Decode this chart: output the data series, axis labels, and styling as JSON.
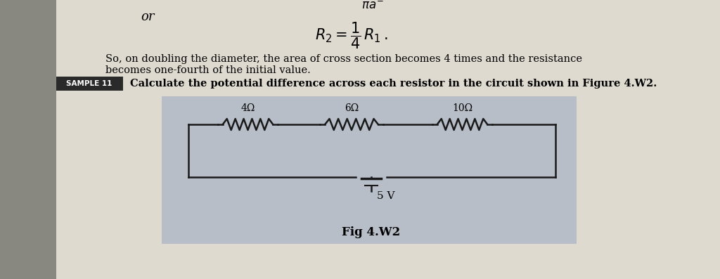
{
  "bg_color": "#c0bdb0",
  "page_bg": "#dedad0",
  "circuit_bg": "#b8bec8",
  "text_or": "or",
  "para_text1": "So, on doubling the diameter, the area of cross section becomes 4 times and the resistance",
  "para_text2": "becomes one-fourth of the initial value.",
  "example_label": "SAMPLE 11",
  "example_text": "Calculate the potential difference across each resistor in the circuit shown in Figure 4.W2.",
  "fig_caption": "Fig 4.W2",
  "resistors": [
    "4Ω",
    "6Ω",
    "10Ω"
  ],
  "voltage": "5 V",
  "wire_color": "#1a1a1a",
  "lw": 1.8
}
